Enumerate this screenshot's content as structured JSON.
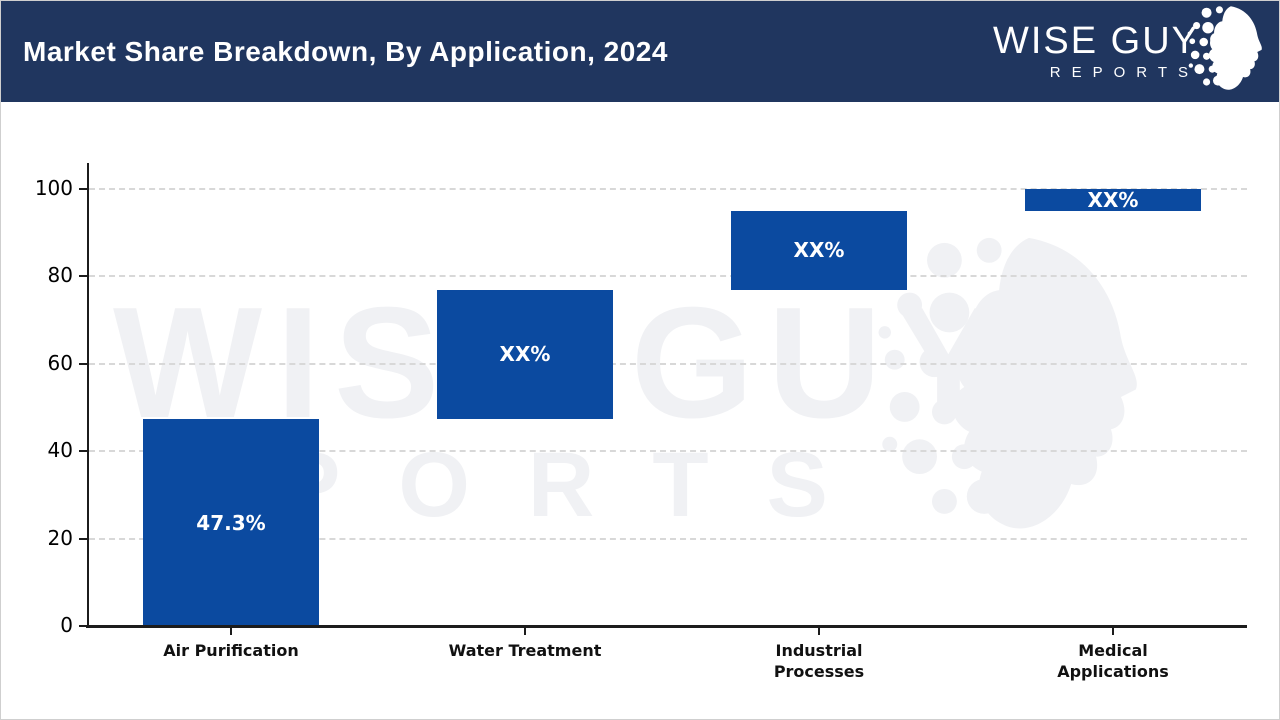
{
  "header": {
    "title": "Market Share Breakdown, By Application, 2024",
    "logo": {
      "line1": "WISE GUY",
      "line2": "REPORTS"
    }
  },
  "watermark": {
    "line1": "WISE GUY",
    "line2": "PORTS"
  },
  "chart_data": {
    "type": "bar",
    "subtype": "waterfall",
    "title": "Market Share Breakdown, By Application, 2024",
    "categories": [
      "Air Purification",
      "Water Treatment",
      "Industrial Processes",
      "Medical Applications"
    ],
    "segments": [
      {
        "category": "Air Purification",
        "start": 0,
        "end": 47.3,
        "label": "47.3%"
      },
      {
        "category": "Water Treatment",
        "start": 47.3,
        "end": 77,
        "label": "XX%"
      },
      {
        "category": "Industrial Processes",
        "start": 77,
        "end": 95,
        "label": "XX%"
      },
      {
        "category": "Medical Applications",
        "start": 95,
        "end": 100,
        "label": "XX%"
      }
    ],
    "ylim": [
      0,
      100
    ],
    "yticks": [
      0,
      20,
      40,
      60,
      80,
      100
    ],
    "xlabel": "",
    "ylabel": "",
    "grid": "horizontal-dashed",
    "legend": "none"
  },
  "colors": {
    "header_bg": "#20365f",
    "bar": "#0b4aa0",
    "grid": "#d8d8d8",
    "axis": "#1c1c1c",
    "watermark": "#f0f1f4",
    "bar_label": "#ffffff"
  }
}
